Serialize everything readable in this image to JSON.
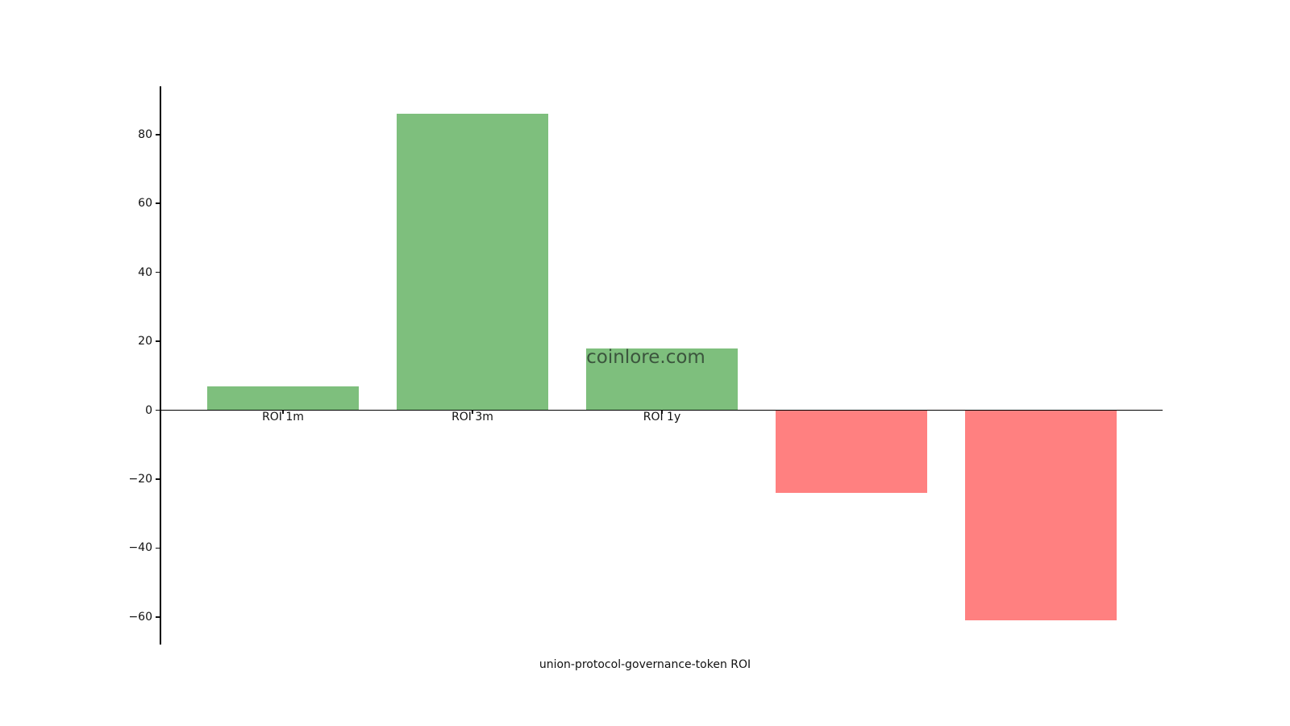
{
  "chart_data": {
    "type": "bar",
    "title": "union-protocol-governance-token ROI",
    "watermark": "coinlore.com",
    "categories": [
      "ROI 1m",
      "ROI 3m",
      "ROI 1y",
      "",
      ""
    ],
    "values": [
      7,
      86,
      18,
      -24,
      -61
    ],
    "yticks": [
      80,
      60,
      40,
      20,
      0,
      -20,
      -40,
      -60
    ],
    "ytick_labels": [
      "80",
      "60",
      "40",
      "20",
      "0",
      "−20",
      "−40",
      "−60"
    ],
    "ylim": [
      -68,
      94
    ],
    "grid": false,
    "legend": null,
    "colors": {
      "positive": "#7ebf7d",
      "negative": "#ff8080",
      "axis": "#000000",
      "tick_text": "#111111",
      "watermark_text": "#3b553d"
    }
  }
}
